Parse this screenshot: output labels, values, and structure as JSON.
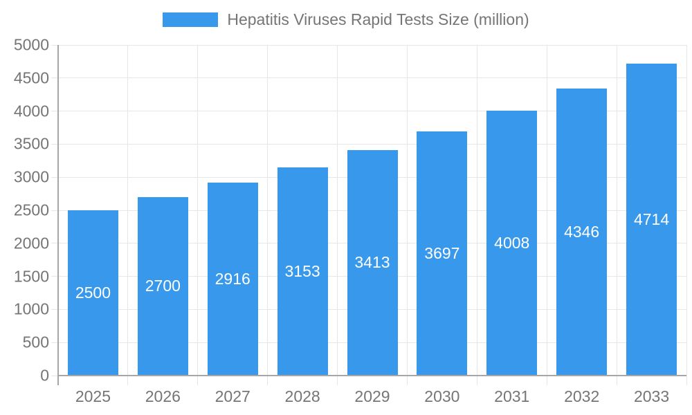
{
  "legend": {
    "label": "Hepatitis Viruses Rapid Tests Size (million)"
  },
  "chart_data": {
    "type": "bar",
    "title": "Hepatitis Viruses Rapid Tests Size (million)",
    "categories": [
      "2025",
      "2026",
      "2027",
      "2028",
      "2029",
      "2030",
      "2031",
      "2032",
      "2033"
    ],
    "series": [
      {
        "name": "Hepatitis Viruses Rapid Tests Size (million)",
        "values": [
          2500,
          2700,
          2916,
          3153,
          3413,
          3697,
          4008,
          4346,
          4714
        ]
      }
    ],
    "xlabel": "",
    "ylabel": "",
    "ylim": [
      0,
      5000
    ],
    "ytick_step": 500,
    "ytick_labels": [
      "0",
      "500",
      "1000",
      "1500",
      "2000",
      "2500",
      "3000",
      "3500",
      "4000",
      "4500",
      "5000"
    ],
    "grid": true,
    "legend_position": "top-center",
    "value_labels": "inside-center",
    "colors": {
      "bar": "#3899EC",
      "value_text": "#ffffff",
      "axis_text": "#757575",
      "grid": "#e6e6e6",
      "axis_line": "#a6a6a6"
    }
  }
}
